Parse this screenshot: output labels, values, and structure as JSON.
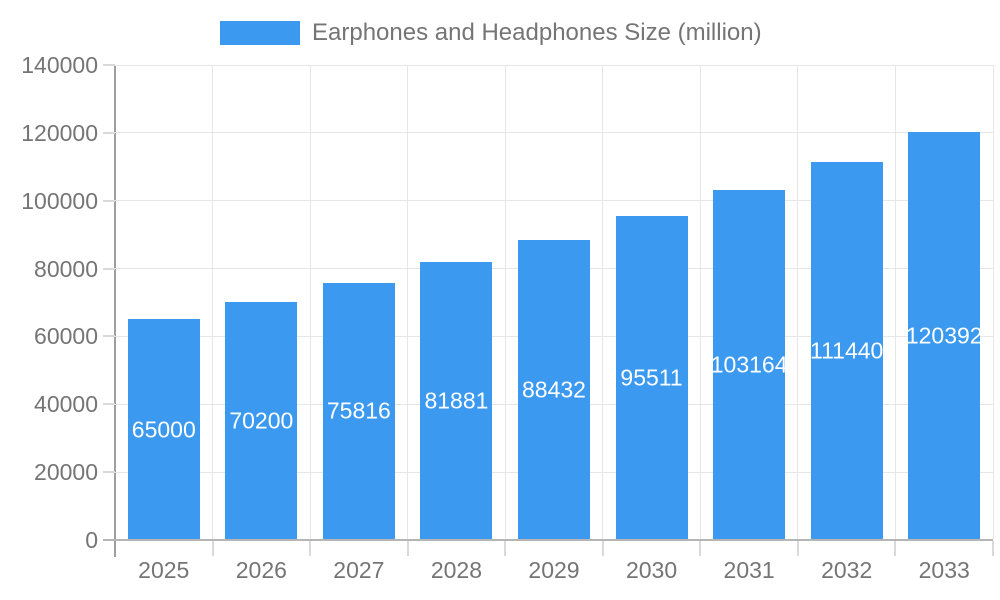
{
  "chart_data": {
    "type": "bar",
    "title": "",
    "legend": {
      "label": "Earphones and Headphones Size (million)",
      "position": "top"
    },
    "categories": [
      "2025",
      "2026",
      "2027",
      "2028",
      "2029",
      "2030",
      "2031",
      "2032",
      "2033"
    ],
    "series": [
      {
        "name": "Earphones and Headphones Size (million)",
        "values": [
          65000,
          70200,
          75816,
          81881,
          88432,
          95511,
          103164,
          111440,
          120392
        ]
      }
    ],
    "xlabel": "",
    "ylabel": "",
    "ylim": [
      0,
      140000
    ],
    "ytick_step": 20000,
    "ytick_labels": [
      "0",
      "20000",
      "40000",
      "60000",
      "80000",
      "100000",
      "120000",
      "140000"
    ],
    "grid": true,
    "value_labels_shown": true,
    "colors": {
      "bar": "#3B99F0",
      "grid": "#E6E6E6",
      "axis": "#9E9E9E",
      "baseline": "#B5B5B5",
      "tick": "#D9D9D9",
      "text": "#757575",
      "value_text": "#FFFFFF",
      "background": "#FFFFFF"
    }
  }
}
